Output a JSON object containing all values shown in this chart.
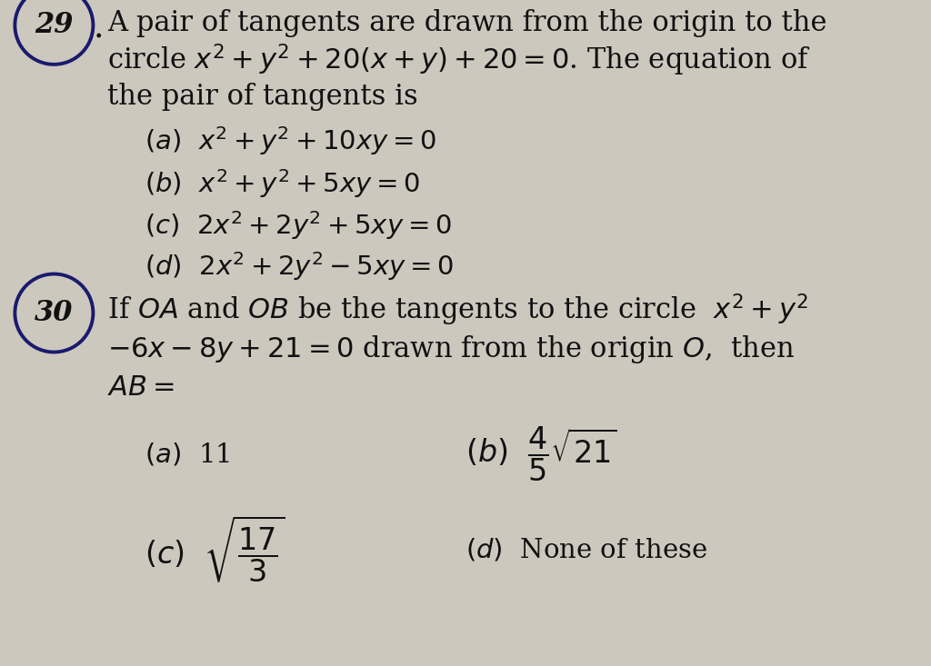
{
  "background_color": "#cdc8be",
  "text_color": "#111111",
  "figsize": [
    10.24,
    7.33
  ],
  "dpi": 100,
  "q29_number": "29",
  "q29_dot": ".",
  "q29_text_line1": "A pair of tangents are drawn from the origin to the",
  "q29_text_line2": "circle $x^2+y^2+20(x+y)+20=0$. The equation of",
  "q29_text_line3": "the pair of tangents is",
  "q29_a": "$(a)$  $x^2+y^2+10xy=0$",
  "q29_b": "$(b)$  $x^2+y^2+5xy=0$",
  "q29_c": "$(c)$  $2x^2+2y^2+5xy=0$",
  "q29_d": "$(d)$  $2x^2+2y^2-5xy=0$",
  "q30_number": "30",
  "q30_text_line1": "If $OA$ and $OB$ be the tangents to the circle  $x^2+y^2$",
  "q30_text_line2": "$-6x-8y+21=0$ drawn from the origin $O$,  then",
  "q30_text_line3": "$AB=$",
  "q30_a": "$(a)$  11",
  "q30_b": "$(b)$  $\\dfrac{4}{5}\\sqrt{21}$",
  "q30_c": "$(c)$  $\\sqrt{\\dfrac{17}{3}}$",
  "q30_d": "$(d)$  None of these",
  "circle_color": "#1a1a6e",
  "circle_linewidth": 2.8,
  "font_size": 22,
  "font_size_options": 21
}
